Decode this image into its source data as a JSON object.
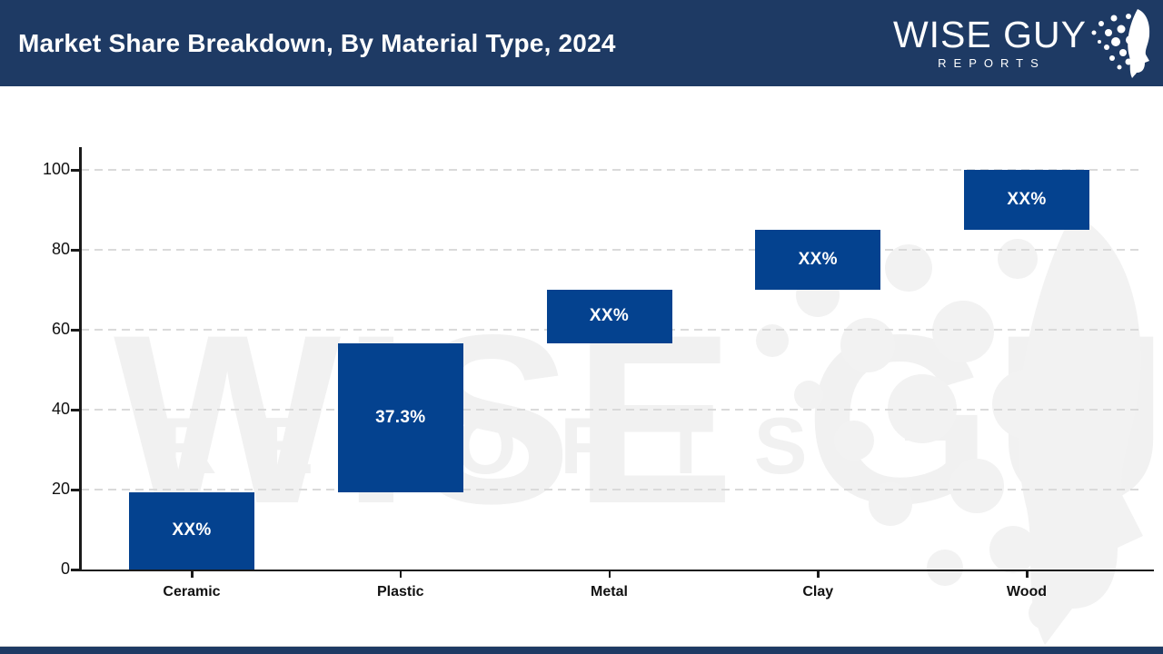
{
  "header": {
    "title": "Market Share Breakdown, By Material Type, 2024",
    "logo": {
      "line1": "WISE GUY",
      "line2": "REPORTS"
    }
  },
  "watermark": {
    "line1": "WISE GUY",
    "line2": "REPORTS"
  },
  "footer": {},
  "colors": {
    "header_bg": "#1e3a64",
    "footer_bg": "#1e3a64",
    "bar": "#04428f",
    "bar_label": "#ffffff",
    "grid": "#dadada",
    "axis": "#1a1a1a",
    "watermark": "#f1f1f1"
  },
  "chart_data": {
    "type": "bar",
    "subtype": "waterfall",
    "title": "Market Share Breakdown, By Material Type, 2024",
    "xlabel": "",
    "ylabel": "",
    "categories": [
      "Ceramic",
      "Plastic",
      "Metal",
      "Clay",
      "Wood"
    ],
    "segments": [
      {
        "category": "Ceramic",
        "start": 0,
        "end": 19.4,
        "value_label": "XX%"
      },
      {
        "category": "Plastic",
        "start": 19.4,
        "end": 56.7,
        "value_label": "37.3%"
      },
      {
        "category": "Metal",
        "start": 56.7,
        "end": 70,
        "value_label": "XX%"
      },
      {
        "category": "Clay",
        "start": 70,
        "end": 85,
        "value_label": "XX%"
      },
      {
        "category": "Wood",
        "start": 85,
        "end": 100,
        "value_label": "XX%"
      }
    ],
    "y_ticks": [
      0,
      20,
      40,
      60,
      80,
      100
    ],
    "ylim": [
      0,
      100
    ],
    "grid": "horizontal-dashed",
    "legend": "none"
  }
}
